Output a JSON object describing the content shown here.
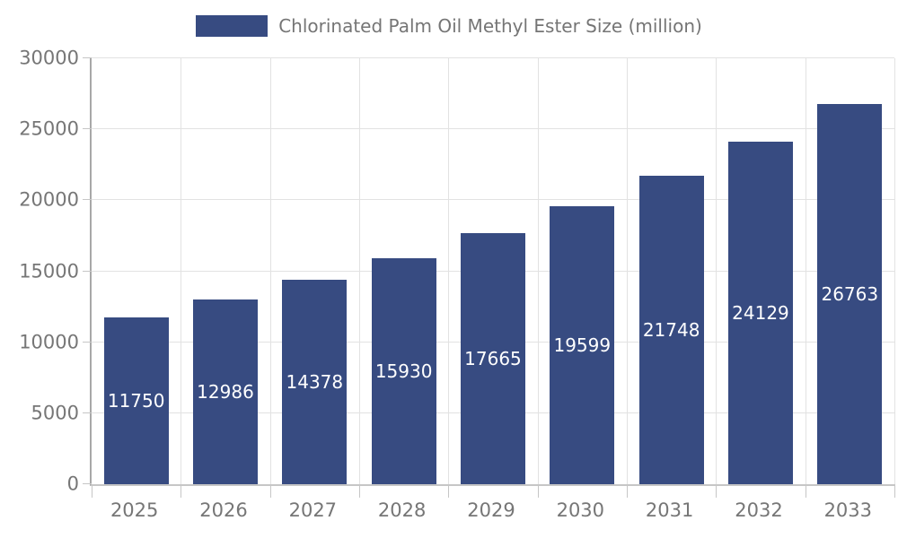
{
  "chart_data": {
    "type": "bar",
    "title": "",
    "xlabel": "",
    "ylabel": "",
    "categories": [
      "2025",
      "2026",
      "2027",
      "2028",
      "2029",
      "2030",
      "2031",
      "2032",
      "2033"
    ],
    "series": [
      {
        "name": "Chlorinated Palm Oil Methyl Ester Size (million)",
        "values": [
          11750,
          12986,
          14378,
          15930,
          17665,
          19599,
          21748,
          24129,
          26763
        ]
      }
    ],
    "bar_labels": true,
    "ylim": [
      0,
      30000
    ],
    "yticks": [
      0,
      5000,
      10000,
      15000,
      20000,
      25000,
      30000
    ],
    "grid": true,
    "legend_position": "top",
    "colors": {
      "bar": "#374B81",
      "bar_label": "#FFFFFF",
      "axis_text": "#767676",
      "legend_text": "#757575",
      "gridline": "#E2E2E2",
      "axis_line": "#A8A8A8",
      "tick_line": "#C6C6C6",
      "background": "#FFFFFF"
    }
  }
}
